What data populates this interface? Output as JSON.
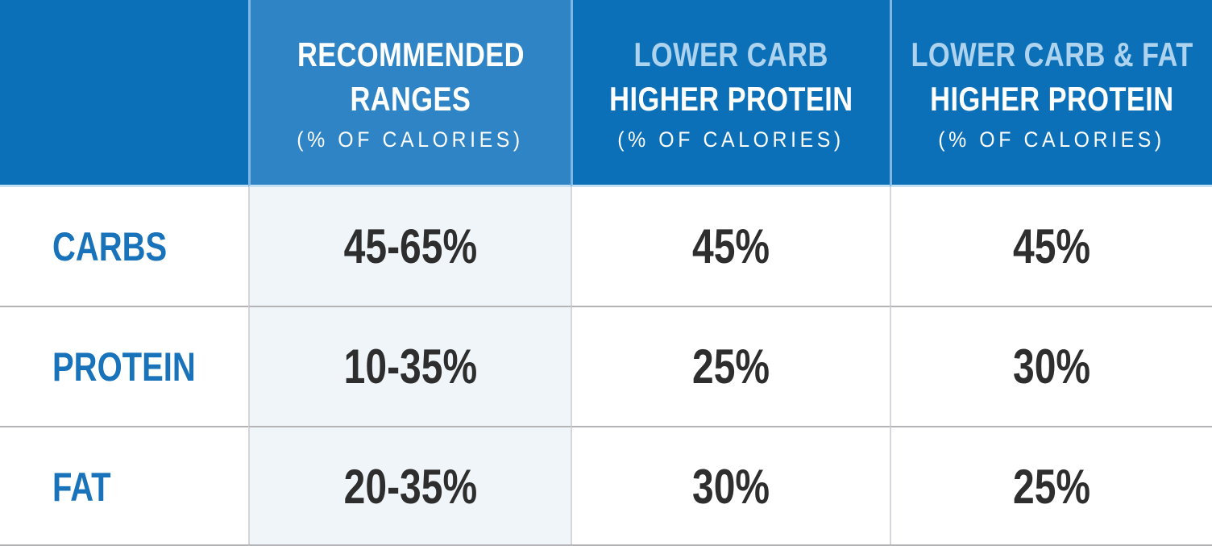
{
  "colors": {
    "header_dark_blue": "#0b70b8",
    "header_light_blue": "#2e84c5",
    "header_accent_text": "#aed3ee",
    "header_text": "#ffffff",
    "shaded_column_bg": "#f0f5f9",
    "row_label_blue": "#1873ba",
    "value_text": "#2e2e2e",
    "grid_line_gray": "#b4b4b6"
  },
  "table": {
    "columns": [
      {
        "line1": "RECOMMENDED",
        "line2": "RANGES",
        "subtitle": "(% OF CALORIES)"
      },
      {
        "line1": "LOWER CARB",
        "line2": "HIGHER PROTEIN",
        "subtitle": "(% OF CALORIES)"
      },
      {
        "line1": "LOWER CARB & FAT",
        "line2": "HIGHER PROTEIN",
        "subtitle": "(% OF CALORIES)"
      }
    ],
    "rows": [
      {
        "label": "CARBS",
        "values": [
          "45-65%",
          "45%",
          "45%"
        ]
      },
      {
        "label": "PROTEIN",
        "values": [
          "10-35%",
          "25%",
          "30%"
        ]
      },
      {
        "label": "FAT",
        "values": [
          "20-35%",
          "30%",
          "25%"
        ]
      }
    ]
  },
  "chart_data": {
    "type": "table",
    "columns": [
      "",
      "RECOMMENDED RANGES (% OF CALORIES)",
      "LOWER CARB HIGHER PROTEIN (% OF CALORIES)",
      "LOWER CARB & FAT HIGHER PROTEIN (% OF CALORIES)"
    ],
    "rows": [
      [
        "CARBS",
        "45-65%",
        "45%",
        "45%"
      ],
      [
        "PROTEIN",
        "10-35%",
        "25%",
        "30%"
      ],
      [
        "FAT",
        "20-35%",
        "30%",
        "25%"
      ]
    ]
  }
}
